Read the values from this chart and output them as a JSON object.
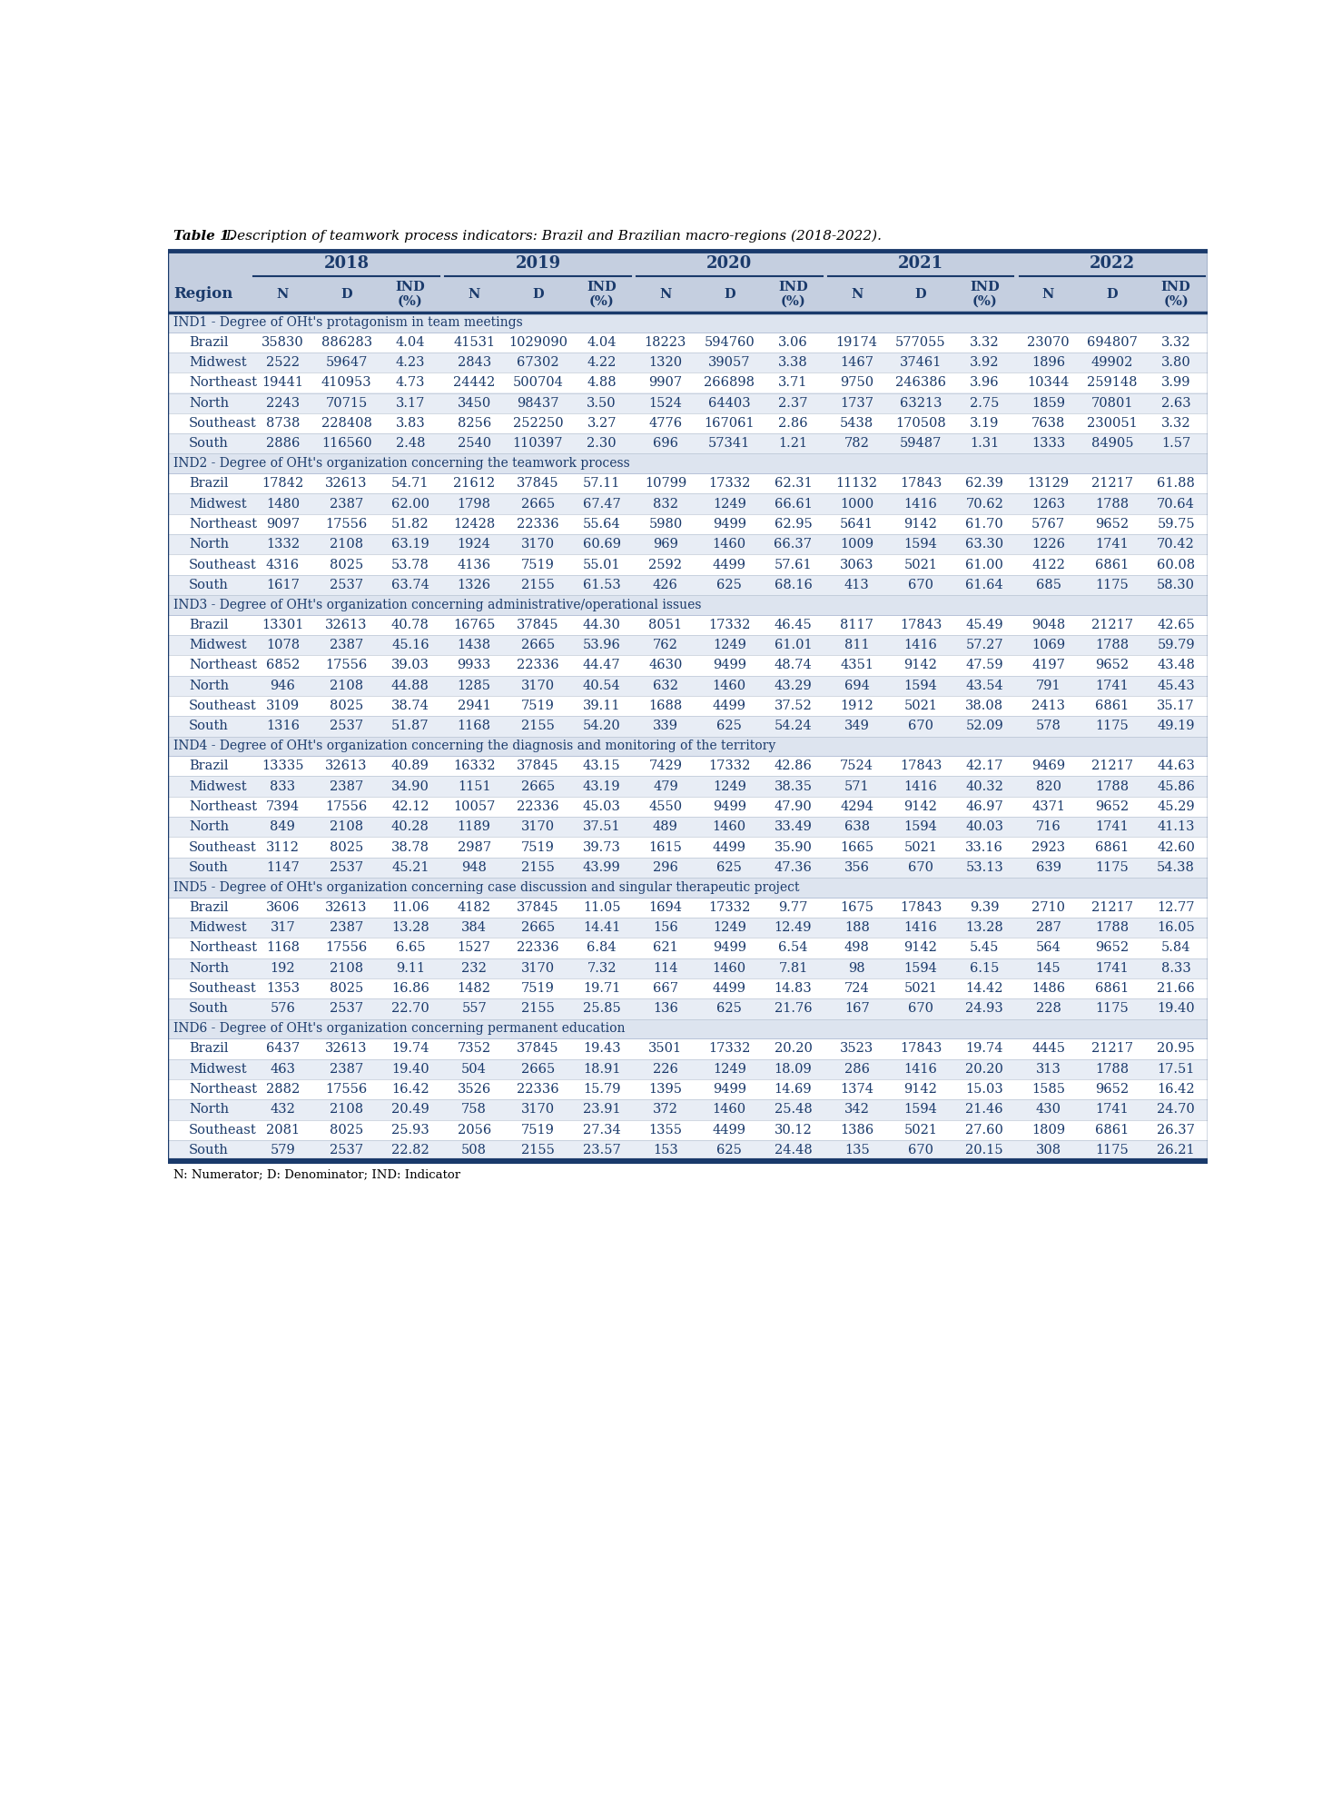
{
  "title_bold": "Table 1.",
  "title_rest": " Description of teamwork process indicators: Brazil and Brazilian macro-regions (2018-2022).",
  "header_bg": "#c5cfe0",
  "section_bg": "#dde4ef",
  "row_bg_white": "#ffffff",
  "row_bg_light": "#e8edf5",
  "text_color": "#1a3a6b",
  "line_color": "#1a3a6b",
  "years": [
    "2018",
    "2019",
    "2020",
    "2021",
    "2022"
  ],
  "sections": [
    {
      "label": "IND1 - Degree of OHt's protagonism in team meetings",
      "rows": [
        [
          "Brazil",
          "35830",
          "886283",
          "4.04",
          "41531",
          "1029090",
          "4.04",
          "18223",
          "594760",
          "3.06",
          "19174",
          "577055",
          "3.32",
          "23070",
          "694807",
          "3.32"
        ],
        [
          "Midwest",
          "2522",
          "59647",
          "4.23",
          "2843",
          "67302",
          "4.22",
          "1320",
          "39057",
          "3.38",
          "1467",
          "37461",
          "3.92",
          "1896",
          "49902",
          "3.80"
        ],
        [
          "Northeast",
          "19441",
          "410953",
          "4.73",
          "24442",
          "500704",
          "4.88",
          "9907",
          "266898",
          "3.71",
          "9750",
          "246386",
          "3.96",
          "10344",
          "259148",
          "3.99"
        ],
        [
          "North",
          "2243",
          "70715",
          "3.17",
          "3450",
          "98437",
          "3.50",
          "1524",
          "64403",
          "2.37",
          "1737",
          "63213",
          "2.75",
          "1859",
          "70801",
          "2.63"
        ],
        [
          "Southeast",
          "8738",
          "228408",
          "3.83",
          "8256",
          "252250",
          "3.27",
          "4776",
          "167061",
          "2.86",
          "5438",
          "170508",
          "3.19",
          "7638",
          "230051",
          "3.32"
        ],
        [
          "South",
          "2886",
          "116560",
          "2.48",
          "2540",
          "110397",
          "2.30",
          "696",
          "57341",
          "1.21",
          "782",
          "59487",
          "1.31",
          "1333",
          "84905",
          "1.57"
        ]
      ]
    },
    {
      "label": "IND2 - Degree of OHt's organization concerning the teamwork process",
      "rows": [
        [
          "Brazil",
          "17842",
          "32613",
          "54.71",
          "21612",
          "37845",
          "57.11",
          "10799",
          "17332",
          "62.31",
          "11132",
          "17843",
          "62.39",
          "13129",
          "21217",
          "61.88"
        ],
        [
          "Midwest",
          "1480",
          "2387",
          "62.00",
          "1798",
          "2665",
          "67.47",
          "832",
          "1249",
          "66.61",
          "1000",
          "1416",
          "70.62",
          "1263",
          "1788",
          "70.64"
        ],
        [
          "Northeast",
          "9097",
          "17556",
          "51.82",
          "12428",
          "22336",
          "55.64",
          "5980",
          "9499",
          "62.95",
          "5641",
          "9142",
          "61.70",
          "5767",
          "9652",
          "59.75"
        ],
        [
          "North",
          "1332",
          "2108",
          "63.19",
          "1924",
          "3170",
          "60.69",
          "969",
          "1460",
          "66.37",
          "1009",
          "1594",
          "63.30",
          "1226",
          "1741",
          "70.42"
        ],
        [
          "Southeast",
          "4316",
          "8025",
          "53.78",
          "4136",
          "7519",
          "55.01",
          "2592",
          "4499",
          "57.61",
          "3063",
          "5021",
          "61.00",
          "4122",
          "6861",
          "60.08"
        ],
        [
          "South",
          "1617",
          "2537",
          "63.74",
          "1326",
          "2155",
          "61.53",
          "426",
          "625",
          "68.16",
          "413",
          "670",
          "61.64",
          "685",
          "1175",
          "58.30"
        ]
      ]
    },
    {
      "label": "IND3 - Degree of OHt's organization concerning administrative/operational issues",
      "rows": [
        [
          "Brazil",
          "13301",
          "32613",
          "40.78",
          "16765",
          "37845",
          "44.30",
          "8051",
          "17332",
          "46.45",
          "8117",
          "17843",
          "45.49",
          "9048",
          "21217",
          "42.65"
        ],
        [
          "Midwest",
          "1078",
          "2387",
          "45.16",
          "1438",
          "2665",
          "53.96",
          "762",
          "1249",
          "61.01",
          "811",
          "1416",
          "57.27",
          "1069",
          "1788",
          "59.79"
        ],
        [
          "Northeast",
          "6852",
          "17556",
          "39.03",
          "9933",
          "22336",
          "44.47",
          "4630",
          "9499",
          "48.74",
          "4351",
          "9142",
          "47.59",
          "4197",
          "9652",
          "43.48"
        ],
        [
          "North",
          "946",
          "2108",
          "44.88",
          "1285",
          "3170",
          "40.54",
          "632",
          "1460",
          "43.29",
          "694",
          "1594",
          "43.54",
          "791",
          "1741",
          "45.43"
        ],
        [
          "Southeast",
          "3109",
          "8025",
          "38.74",
          "2941",
          "7519",
          "39.11",
          "1688",
          "4499",
          "37.52",
          "1912",
          "5021",
          "38.08",
          "2413",
          "6861",
          "35.17"
        ],
        [
          "South",
          "1316",
          "2537",
          "51.87",
          "1168",
          "2155",
          "54.20",
          "339",
          "625",
          "54.24",
          "349",
          "670",
          "52.09",
          "578",
          "1175",
          "49.19"
        ]
      ]
    },
    {
      "label": "IND4 - Degree of OHt's organization concerning the diagnosis and monitoring of the territory",
      "rows": [
        [
          "Brazil",
          "13335",
          "32613",
          "40.89",
          "16332",
          "37845",
          "43.15",
          "7429",
          "17332",
          "42.86",
          "7524",
          "17843",
          "42.17",
          "9469",
          "21217",
          "44.63"
        ],
        [
          "Midwest",
          "833",
          "2387",
          "34.90",
          "1151",
          "2665",
          "43.19",
          "479",
          "1249",
          "38.35",
          "571",
          "1416",
          "40.32",
          "820",
          "1788",
          "45.86"
        ],
        [
          "Northeast",
          "7394",
          "17556",
          "42.12",
          "10057",
          "22336",
          "45.03",
          "4550",
          "9499",
          "47.90",
          "4294",
          "9142",
          "46.97",
          "4371",
          "9652",
          "45.29"
        ],
        [
          "North",
          "849",
          "2108",
          "40.28",
          "1189",
          "3170",
          "37.51",
          "489",
          "1460",
          "33.49",
          "638",
          "1594",
          "40.03",
          "716",
          "1741",
          "41.13"
        ],
        [
          "Southeast",
          "3112",
          "8025",
          "38.78",
          "2987",
          "7519",
          "39.73",
          "1615",
          "4499",
          "35.90",
          "1665",
          "5021",
          "33.16",
          "2923",
          "6861",
          "42.60"
        ],
        [
          "South",
          "1147",
          "2537",
          "45.21",
          "948",
          "2155",
          "43.99",
          "296",
          "625",
          "47.36",
          "356",
          "670",
          "53.13",
          "639",
          "1175",
          "54.38"
        ]
      ]
    },
    {
      "label": "IND5 - Degree of OHt's organization concerning case discussion and singular therapeutic project",
      "rows": [
        [
          "Brazil",
          "3606",
          "32613",
          "11.06",
          "4182",
          "37845",
          "11.05",
          "1694",
          "17332",
          "9.77",
          "1675",
          "17843",
          "9.39",
          "2710",
          "21217",
          "12.77"
        ],
        [
          "Midwest",
          "317",
          "2387",
          "13.28",
          "384",
          "2665",
          "14.41",
          "156",
          "1249",
          "12.49",
          "188",
          "1416",
          "13.28",
          "287",
          "1788",
          "16.05"
        ],
        [
          "Northeast",
          "1168",
          "17556",
          "6.65",
          "1527",
          "22336",
          "6.84",
          "621",
          "9499",
          "6.54",
          "498",
          "9142",
          "5.45",
          "564",
          "9652",
          "5.84"
        ],
        [
          "North",
          "192",
          "2108",
          "9.11",
          "232",
          "3170",
          "7.32",
          "114",
          "1460",
          "7.81",
          "98",
          "1594",
          "6.15",
          "145",
          "1741",
          "8.33"
        ],
        [
          "Southeast",
          "1353",
          "8025",
          "16.86",
          "1482",
          "7519",
          "19.71",
          "667",
          "4499",
          "14.83",
          "724",
          "5021",
          "14.42",
          "1486",
          "6861",
          "21.66"
        ],
        [
          "South",
          "576",
          "2537",
          "22.70",
          "557",
          "2155",
          "25.85",
          "136",
          "625",
          "21.76",
          "167",
          "670",
          "24.93",
          "228",
          "1175",
          "19.40"
        ]
      ]
    },
    {
      "label": "IND6 - Degree of OHt's organization concerning permanent education",
      "rows": [
        [
          "Brazil",
          "6437",
          "32613",
          "19.74",
          "7352",
          "37845",
          "19.43",
          "3501",
          "17332",
          "20.20",
          "3523",
          "17843",
          "19.74",
          "4445",
          "21217",
          "20.95"
        ],
        [
          "Midwest",
          "463",
          "2387",
          "19.40",
          "504",
          "2665",
          "18.91",
          "226",
          "1249",
          "18.09",
          "286",
          "1416",
          "20.20",
          "313",
          "1788",
          "17.51"
        ],
        [
          "Northeast",
          "2882",
          "17556",
          "16.42",
          "3526",
          "22336",
          "15.79",
          "1395",
          "9499",
          "14.69",
          "1374",
          "9142",
          "15.03",
          "1585",
          "9652",
          "16.42"
        ],
        [
          "North",
          "432",
          "2108",
          "20.49",
          "758",
          "3170",
          "23.91",
          "372",
          "1460",
          "25.48",
          "342",
          "1594",
          "21.46",
          "430",
          "1741",
          "24.70"
        ],
        [
          "Southeast",
          "2081",
          "8025",
          "25.93",
          "2056",
          "7519",
          "27.34",
          "1355",
          "4499",
          "30.12",
          "1386",
          "5021",
          "27.60",
          "1809",
          "6861",
          "26.37"
        ],
        [
          "South",
          "579",
          "2537",
          "22.82",
          "508",
          "2155",
          "23.57",
          "153",
          "625",
          "24.48",
          "135",
          "670",
          "20.15",
          "308",
          "1175",
          "26.21"
        ]
      ]
    }
  ],
  "footer": "N: Numerator; D: Denominator; IND: Indicator"
}
